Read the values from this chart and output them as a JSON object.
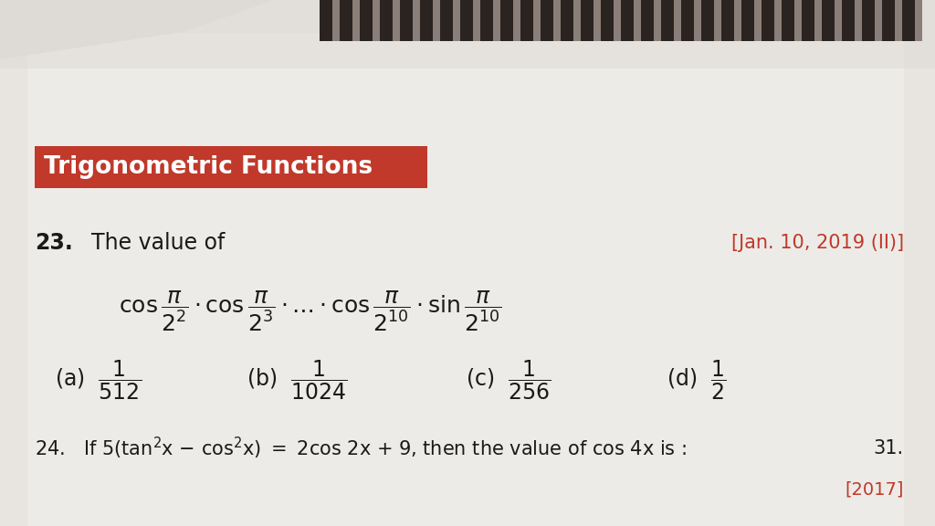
{
  "page_bg": "#e8e4e0",
  "header_bg": "#c0392b",
  "header_text": "Trigonometric Functions",
  "header_text_color": "#ffffff",
  "header_fontsize": 19,
  "q_number": "23.",
  "q_label": "The value of",
  "q_ref": "[Jan. 10, 2019 (II)]",
  "formula": "$\\cos\\dfrac{\\pi}{2^2}\\cdot\\cos\\dfrac{\\pi}{2^3}\\cdot\\ldots\\cdot\\cos\\dfrac{\\pi}{2^{10}}\\cdot\\sin\\dfrac{\\pi}{2^{10}}$",
  "option_a": "(a)  $\\dfrac{1}{512}$",
  "option_b": "(b)  $\\dfrac{1}{1024}$",
  "option_c": "(c)  $\\dfrac{1}{256}$",
  "option_d": "(d)  $\\dfrac{1}{2}$",
  "q24_text": "24.   If 5(tan$^2$x $-$ cos$^2$x) $=$ 2cos 2x $+$ 9, then the value of cos 4x is :",
  "q24_ref": "[2017]",
  "q24_num": "31.",
  "text_color": "#1a1a1a",
  "red_color": "#c0392b",
  "dark_red": "#8b0000",
  "figsize": [
    10.24,
    5.76
  ],
  "dpi": 100,
  "top_stripe_color": "#2a2320",
  "top_white_color": "#f0eeeb"
}
